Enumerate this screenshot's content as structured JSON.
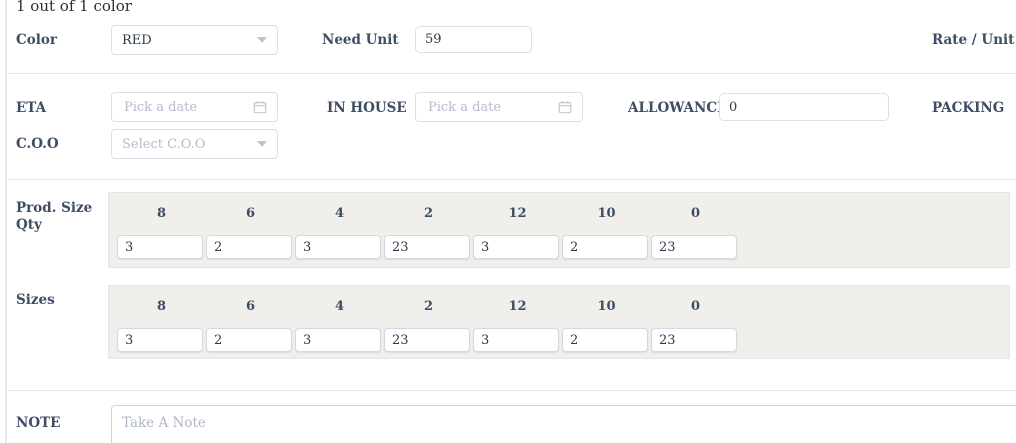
{
  "colors": {
    "label_text": "#3d4d63",
    "input_text": "#2d3a4b",
    "placeholder": "#b4bccc",
    "input_border": "#dcdfe6",
    "panel_bg": "#f0efec",
    "divider": "#e9e9eb"
  },
  "header": {
    "title": "1 out of 1 color"
  },
  "color_row": {
    "color": {
      "label": "Color",
      "value": "RED"
    },
    "need_unit": {
      "label": "Need Unit",
      "value": "59"
    },
    "rate_unit": {
      "label": "Rate / Unit"
    }
  },
  "dates_row": {
    "eta": {
      "label": "ETA",
      "placeholder": "Pick a date"
    },
    "in_house": {
      "label": "IN HOUSE",
      "placeholder": "Pick a date"
    },
    "allowance": {
      "label": "ALLOWANCE",
      "value": "0"
    },
    "packing": {
      "label": "PACKING"
    }
  },
  "coo_row": {
    "coo": {
      "label": "C.O.O",
      "placeholder": "Select C.O.O"
    }
  },
  "prod_size_qty": {
    "label_line1": "Prod. Size",
    "label_line2": "Qty",
    "sizes": [
      "8",
      "6",
      "4",
      "2",
      "12",
      "10",
      "0"
    ],
    "quantities": [
      "3",
      "2",
      "3",
      "23",
      "3",
      "2",
      "23"
    ]
  },
  "sizes_section": {
    "label": "Sizes",
    "sizes": [
      "8",
      "6",
      "4",
      "2",
      "12",
      "10",
      "0"
    ],
    "quantities": [
      "3",
      "2",
      "3",
      "23",
      "3",
      "2",
      "23"
    ]
  },
  "note_row": {
    "label": "NOTE",
    "placeholder": "Take A Note"
  }
}
